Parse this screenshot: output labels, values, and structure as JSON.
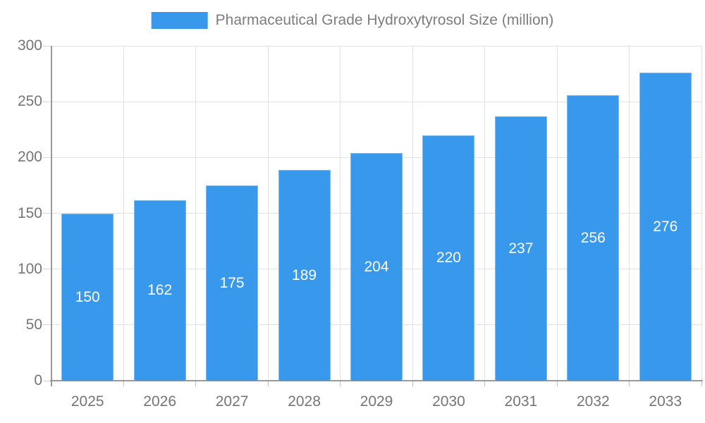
{
  "chart_data": {
    "type": "bar",
    "title": "Pharmaceutical Grade Hydroxytyrosol Size (million)",
    "legend": [
      "Pharmaceutical Grade Hydroxytyrosol Size (million)"
    ],
    "legend_position": "top",
    "categories": [
      "2025",
      "2026",
      "2027",
      "2028",
      "2029",
      "2030",
      "2031",
      "2032",
      "2033"
    ],
    "values": [
      150,
      162,
      175,
      189,
      204,
      220,
      237,
      256,
      276
    ],
    "xlabel": "",
    "ylabel": "",
    "ylim": [
      0,
      300
    ],
    "yticks": [
      0,
      50,
      100,
      150,
      200,
      250,
      300
    ],
    "grid": true,
    "value_labels": "inside-center"
  },
  "colors": {
    "bar": "#3898EC",
    "value_label": "#ffffff",
    "axis": "#9a9a9a",
    "gridline": "#e2e2e2",
    "tick_label": "#757575",
    "legend_text": "#7d7d7d",
    "background": "#ffffff"
  }
}
